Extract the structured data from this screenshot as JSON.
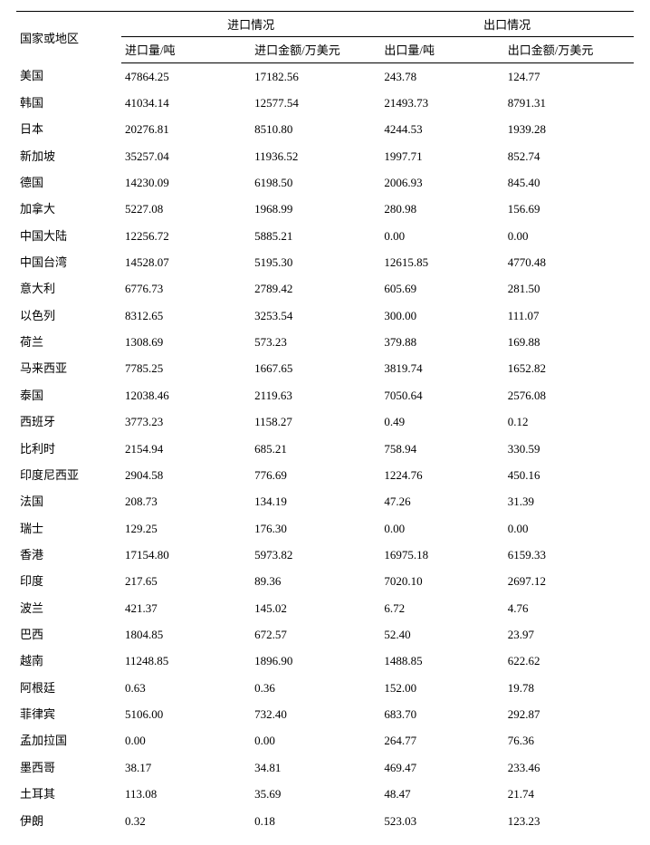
{
  "type": "table",
  "background_color": "#ffffff",
  "text_color": "#000000",
  "border_color": "#000000",
  "font_family": "SimSun",
  "font_size_pt": 10,
  "header": {
    "country_label": "国家或地区",
    "import_group": "进口情况",
    "export_group": "出口情况",
    "import_qty_label": "进口量/吨",
    "import_val_label": "进口金额/万美元",
    "export_qty_label": "出口量/吨",
    "export_val_label": "出口金额/万美元"
  },
  "rows": [
    {
      "country": "美国",
      "import_qty": "47864.25",
      "import_val": "17182.56",
      "export_qty": "243.78",
      "export_val": "124.77"
    },
    {
      "country": "韩国",
      "import_qty": "41034.14",
      "import_val": "12577.54",
      "export_qty": "21493.73",
      "export_val": "8791.31"
    },
    {
      "country": "日本",
      "import_qty": "20276.81",
      "import_val": "8510.80",
      "export_qty": "4244.53",
      "export_val": "1939.28"
    },
    {
      "country": "新加坡",
      "import_qty": "35257.04",
      "import_val": "11936.52",
      "export_qty": "1997.71",
      "export_val": "852.74"
    },
    {
      "country": "德国",
      "import_qty": "14230.09",
      "import_val": "6198.50",
      "export_qty": "2006.93",
      "export_val": "845.40"
    },
    {
      "country": "加拿大",
      "import_qty": "5227.08",
      "import_val": "1968.99",
      "export_qty": "280.98",
      "export_val": "156.69"
    },
    {
      "country": "中国大陆",
      "import_qty": "12256.72",
      "import_val": "5885.21",
      "export_qty": "0.00",
      "export_val": "0.00"
    },
    {
      "country": "中国台湾",
      "import_qty": "14528.07",
      "import_val": "5195.30",
      "export_qty": "12615.85",
      "export_val": "4770.48"
    },
    {
      "country": "意大利",
      "import_qty": "6776.73",
      "import_val": "2789.42",
      "export_qty": "605.69",
      "export_val": "281.50"
    },
    {
      "country": "以色列",
      "import_qty": "8312.65",
      "import_val": "3253.54",
      "export_qty": "300.00",
      "export_val": "111.07"
    },
    {
      "country": "荷兰",
      "import_qty": "1308.69",
      "import_val": "573.23",
      "export_qty": "379.88",
      "export_val": "169.88"
    },
    {
      "country": "马来西亚",
      "import_qty": "7785.25",
      "import_val": "1667.65",
      "export_qty": "3819.74",
      "export_val": "1652.82"
    },
    {
      "country": "泰国",
      "import_qty": "12038.46",
      "import_val": "2119.63",
      "export_qty": "7050.64",
      "export_val": "2576.08"
    },
    {
      "country": "西班牙",
      "import_qty": "3773.23",
      "import_val": "1158.27",
      "export_qty": "0.49",
      "export_val": "0.12"
    },
    {
      "country": "比利时",
      "import_qty": "2154.94",
      "import_val": "685.21",
      "export_qty": "758.94",
      "export_val": "330.59"
    },
    {
      "country": "印度尼西亚",
      "import_qty": "2904.58",
      "import_val": "776.69",
      "export_qty": "1224.76",
      "export_val": "450.16"
    },
    {
      "country": "法国",
      "import_qty": "208.73",
      "import_val": "134.19",
      "export_qty": "47.26",
      "export_val": "31.39"
    },
    {
      "country": "瑞士",
      "import_qty": "129.25",
      "import_val": "176.30",
      "export_qty": "0.00",
      "export_val": "0.00"
    },
    {
      "country": "香港",
      "import_qty": "17154.80",
      "import_val": "5973.82",
      "export_qty": "16975.18",
      "export_val": "6159.33"
    },
    {
      "country": "印度",
      "import_qty": "217.65",
      "import_val": "89.36",
      "export_qty": "7020.10",
      "export_val": "2697.12"
    },
    {
      "country": "波兰",
      "import_qty": "421.37",
      "import_val": "145.02",
      "export_qty": "6.72",
      "export_val": "4.76"
    },
    {
      "country": "巴西",
      "import_qty": "1804.85",
      "import_val": "672.57",
      "export_qty": "52.40",
      "export_val": "23.97"
    },
    {
      "country": "越南",
      "import_qty": "11248.85",
      "import_val": "1896.90",
      "export_qty": "1488.85",
      "export_val": "622.62"
    },
    {
      "country": "阿根廷",
      "import_qty": "0.63",
      "import_val": "0.36",
      "export_qty": "152.00",
      "export_val": "19.78"
    },
    {
      "country": "菲律宾",
      "import_qty": "5106.00",
      "import_val": "732.40",
      "export_qty": "683.70",
      "export_val": "292.87"
    },
    {
      "country": "孟加拉国",
      "import_qty": "0.00",
      "import_val": "0.00",
      "export_qty": "264.77",
      "export_val": "76.36"
    },
    {
      "country": "墨西哥",
      "import_qty": "38.17",
      "import_val": "34.81",
      "export_qty": "469.47",
      "export_val": "233.46"
    },
    {
      "country": "土耳其",
      "import_qty": "113.08",
      "import_val": "35.69",
      "export_qty": "48.47",
      "export_val": "21.74"
    },
    {
      "country": "伊朗",
      "import_qty": "0.32",
      "import_val": "0.18",
      "export_qty": "523.03",
      "export_val": "123.23"
    }
  ]
}
